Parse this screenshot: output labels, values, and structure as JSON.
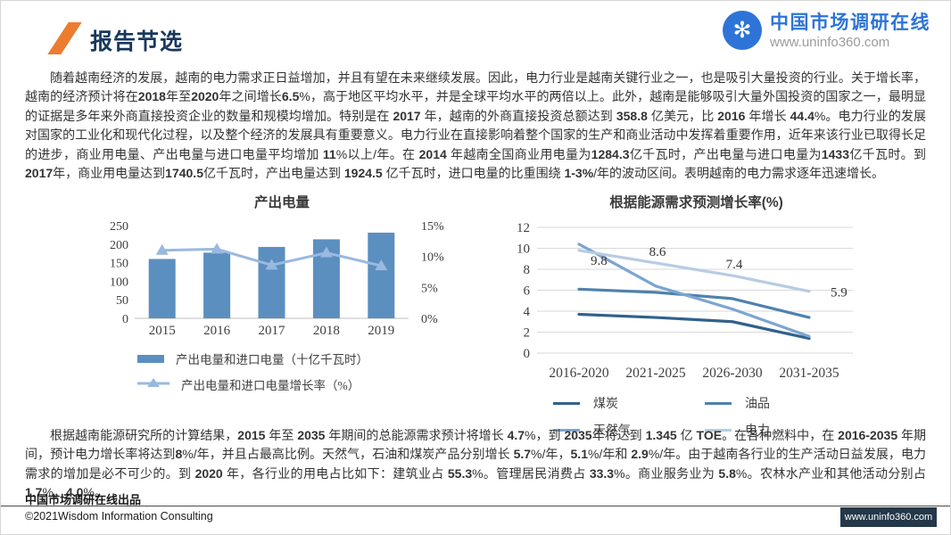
{
  "header": {
    "title": "报告节选",
    "logo": {
      "icon": "snowflake-icon",
      "icon_glyph": "✻",
      "name": "中国市场调研在线",
      "url": "www.uninfo360.com"
    }
  },
  "paragraphs": {
    "p1": [
      {
        "t": "随着越南经济的发展，越南的电力需求正日益增加，并且有望在未来继续发展。因此，电力行业是越南关键行业之一，也是吸引大量投资的行业。关于增长率，越南的经济预计将在",
        "b": false
      },
      {
        "t": "2018",
        "b": true
      },
      {
        "t": "年至",
        "b": false
      },
      {
        "t": "2020",
        "b": true
      },
      {
        "t": "年之间增长",
        "b": false
      },
      {
        "t": "6.5",
        "b": true
      },
      {
        "t": "%，高于地区平均水平，并是全球平均水平的两倍以上。此外，越南是能够吸引大量外国投资的国家之一，最明显的证据是多年来外商直接投资企业的数量和规模均增加。特别是在 ",
        "b": false
      },
      {
        "t": "2017",
        "b": true
      },
      {
        "t": " 年，越南的外商直接投资总额达到 ",
        "b": false
      },
      {
        "t": "358.8",
        "b": true
      },
      {
        "t": " 亿美元，比 ",
        "b": false
      },
      {
        "t": "2016",
        "b": true
      },
      {
        "t": " 年增长 ",
        "b": false
      },
      {
        "t": "44.4",
        "b": true
      },
      {
        "t": "%。电力行业的发展对国家的工业化和现代化过程，以及整个经济的发展具有重要意义。电力行业在直接影响着整个国家的生产和商业活动中发挥着重要作用，近年来该行业已取得长足的进步，商业用电量、产出电量与进口电量平均增加 ",
        "b": false
      },
      {
        "t": "11",
        "b": true
      },
      {
        "t": "%以上/年。在 ",
        "b": false
      },
      {
        "t": "2014",
        "b": true
      },
      {
        "t": " 年越南全国商业用电量为",
        "b": false
      },
      {
        "t": "1284.3",
        "b": true
      },
      {
        "t": "亿千瓦时，产出电量与进口电量为",
        "b": false
      },
      {
        "t": "1433",
        "b": true
      },
      {
        "t": "亿千瓦时。到",
        "b": false
      },
      {
        "t": "2017",
        "b": true
      },
      {
        "t": "年，商业用电量达到",
        "b": false
      },
      {
        "t": "1740.5",
        "b": true
      },
      {
        "t": "亿千瓦时，产出电量达到 ",
        "b": false
      },
      {
        "t": "1924.5",
        "b": true
      },
      {
        "t": " 亿千瓦时，进口电量的比重围绕 ",
        "b": false
      },
      {
        "t": "1-3%",
        "b": true
      },
      {
        "t": "/年的波动区间。表明越南的电力需求逐年迅速增长。",
        "b": false
      }
    ],
    "p2": [
      {
        "t": "根据越南能源研究所的计算结果，",
        "b": false
      },
      {
        "t": "2015",
        "b": true
      },
      {
        "t": " 年至 ",
        "b": false
      },
      {
        "t": "2035",
        "b": true
      },
      {
        "t": " 年期间的总能源需求预计将增长 ",
        "b": false
      },
      {
        "t": "4.7",
        "b": true
      },
      {
        "t": "%，到 ",
        "b": false
      },
      {
        "t": "2035",
        "b": true
      },
      {
        "t": "年将达到 ",
        "b": false
      },
      {
        "t": "1.345",
        "b": true
      },
      {
        "t": " 亿 ",
        "b": false
      },
      {
        "t": "TOE",
        "b": true
      },
      {
        "t": "。在各种燃料中，在 ",
        "b": false
      },
      {
        "t": "2016-2035",
        "b": true
      },
      {
        "t": " 年期间，预计电力增长率将达到",
        "b": false
      },
      {
        "t": "8",
        "b": true
      },
      {
        "t": "%/年，并且占最高比例。天然气，石油和煤炭产品分别增长 ",
        "b": false
      },
      {
        "t": "5.7",
        "b": true
      },
      {
        "t": "%/年，",
        "b": false
      },
      {
        "t": "5.1",
        "b": true
      },
      {
        "t": "%/年和 ",
        "b": false
      },
      {
        "t": "2.9",
        "b": true
      },
      {
        "t": "%/年。由于越南各行业的生产活动日益发展，电力需求的增加是必不可少的。到 ",
        "b": false
      },
      {
        "t": "2020",
        "b": true
      },
      {
        "t": " 年，各行业的用电占比如下：建筑业占 ",
        "b": false
      },
      {
        "t": "55.3",
        "b": true
      },
      {
        "t": "%。管理居民消费占 ",
        "b": false
      },
      {
        "t": "33.3",
        "b": true
      },
      {
        "t": "%。商业服务业为 ",
        "b": false
      },
      {
        "t": "5.8",
        "b": true
      },
      {
        "t": "%。农林水产业和其他活动分别占 ",
        "b": false
      },
      {
        "t": "1.7",
        "b": true
      },
      {
        "t": "%，",
        "b": false
      },
      {
        "t": "4.0",
        "b": true
      },
      {
        "t": "%。",
        "b": false
      }
    ]
  },
  "chart_data": [
    {
      "type": "bar",
      "title": "产出电量",
      "categories": [
        "2015",
        "2016",
        "2017",
        "2018",
        "2019"
      ],
      "series": [
        {
          "name": "产出电量和进口电量（十亿千瓦时）",
          "type": "bar",
          "axis": "left",
          "values": [
            160,
            177,
            192.5,
            213,
            231
          ],
          "color": "#5B8FC0"
        },
        {
          "name": "产出电量和进口电量增长率（%）",
          "type": "line",
          "axis": "right",
          "values": [
            11.0,
            11.2,
            8.6,
            10.6,
            8.5
          ],
          "color": "#99B9DF",
          "marker": "triangle"
        }
      ],
      "left_axis": {
        "min": 0,
        "max": 250,
        "step": 50
      },
      "right_axis": {
        "min": 0,
        "max": 15,
        "step": 5,
        "suffix": "%"
      },
      "grid": false,
      "legend_position": "bottom"
    },
    {
      "type": "line",
      "title": "根据能源需求预测增长率(%)",
      "categories": [
        "2016-2020",
        "2021-2025",
        "2026-2030",
        "2031-2035"
      ],
      "series": [
        {
          "name": "煤炭",
          "values": [
            3.7,
            3.4,
            3.0,
            1.4
          ],
          "color": "#30618D"
        },
        {
          "name": "油品",
          "values": [
            6.1,
            5.8,
            5.2,
            3.4
          ],
          "color": "#4E81AE"
        },
        {
          "name": "天然气",
          "values": [
            10.4,
            6.4,
            4.2,
            1.6
          ],
          "color": "#7CA5D1"
        },
        {
          "name": "电力",
          "values": [
            9.8,
            8.6,
            7.4,
            5.9
          ],
          "color": "#B7CCE4",
          "data_labels": true
        }
      ],
      "ylim": [
        0,
        12
      ],
      "ystep": 2,
      "grid": true,
      "legend_position": "bottom"
    }
  ],
  "footer": {
    "publisher": "中国市场调研在线出品",
    "copyright": "©2021Wisdom Information Consulting",
    "site": "www.uninfo360.com"
  },
  "colors": {
    "accent_orange": "#EC7C30",
    "title_navy": "#17375E",
    "logo_blue": "#2E74D8",
    "footer_box": "#24384A"
  }
}
